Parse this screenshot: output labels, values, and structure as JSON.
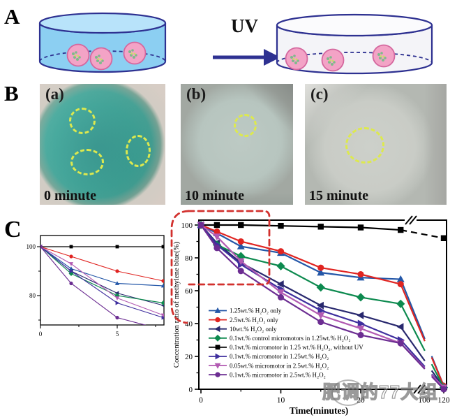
{
  "panelA": {
    "label": "A",
    "arrow_label": "UV",
    "description_colors": {
      "dish_outline": "#2e3191",
      "left_dish_fill": "#8ccff2",
      "right_dish_fill": "#f4f4f8",
      "micromotor_sphere": "#f3a3c6"
    }
  },
  "panelB": {
    "label": "B",
    "highlight_circle_color": "#dde94e",
    "photos": [
      {
        "tag": "(a)",
        "time_label": "0 minute"
      },
      {
        "tag": "(b)",
        "time_label": "10 minute"
      },
      {
        "tag": "(c)",
        "time_label": "15 minute"
      }
    ]
  },
  "panelC": {
    "label": "C",
    "watermark": "肥调的77大组",
    "zoom_box_color": "#d2312e"
  },
  "chart_data": [
    {
      "id": "main",
      "type": "line",
      "title": "",
      "xlabel": "Time(minutes)",
      "ylabel": "Concentration ratio of methylene blue(%)",
      "x": [
        0,
        2,
        5,
        10,
        15,
        20,
        25,
        120
      ],
      "x_ticks": [
        0,
        10,
        20,
        100,
        120
      ],
      "x_minor_ticks": [
        5,
        15,
        110
      ],
      "y_ticks": [
        0,
        20,
        40,
        60,
        80,
        100
      ],
      "y_minor_ticks": [
        10,
        30,
        50,
        70,
        90
      ],
      "ylim": [
        0,
        103
      ],
      "grid": false,
      "legend_position": "inside-bottom-left",
      "axis_break": {
        "x_between": [
          25,
          100
        ],
        "style": "double-slash"
      },
      "series": [
        {
          "name": "1.25wt.% H₂O₂ only",
          "marker": "triangle-up",
          "color": "#2457a8",
          "values": [
            100,
            95,
            87,
            83,
            71,
            68,
            67,
            2
          ]
        },
        {
          "name": "2.5wt.% H₂O₂ only",
          "marker": "circle",
          "color": "#e02421",
          "values": [
            100,
            96,
            90,
            84,
            74,
            70,
            64,
            2
          ]
        },
        {
          "name": "10wt.% H₂O₂ only",
          "marker": "triangle-left",
          "color": "#28286e",
          "values": [
            100,
            89,
            77,
            64,
            51,
            45,
            38,
            1
          ]
        },
        {
          "name": "0.1wt.% control micromotors in 1.25wt.% H₂O₂",
          "marker": "diamond",
          "color": "#0d8a4f",
          "values": [
            100,
            88,
            81,
            75,
            62,
            56,
            52,
            1
          ]
        },
        {
          "name": "0.1wt.% micromotor in 1.25 wt.% H₂O₂, without UV",
          "marker": "square",
          "color": "#000000",
          "values": [
            100,
            100,
            100,
            99.5,
            99,
            98.5,
            97,
            92
          ]
        },
        {
          "name": "0.1wt.% micromotor in 1.25wt.% H₂O₂",
          "marker": "triangle-right",
          "color": "#3f2f9e",
          "values": [
            100,
            88,
            76,
            61,
            48,
            40,
            30,
            1
          ]
        },
        {
          "name": "0.05wt.% micromotor in 2.5wt.% H₂O₂",
          "marker": "triangle-down",
          "color": "#b25ab2",
          "values": [
            100,
            93,
            78,
            59,
            45,
            37,
            28,
            1
          ]
        },
        {
          "name": "0.1wt.% micromotor in 2.5wt.% H₂O₂",
          "marker": "circle",
          "color": "#6c2d92",
          "values": [
            100,
            86,
            72,
            56,
            41,
            33,
            28,
            0
          ]
        }
      ]
    },
    {
      "id": "inset",
      "type": "line",
      "title": "",
      "xlabel": "",
      "ylabel": "",
      "x": [
        0,
        2,
        5,
        8
      ],
      "x_ticks": [
        0,
        5
      ],
      "x_minor_ticks": [
        2.5,
        7.5
      ],
      "y_ticks": [
        80,
        100
      ],
      "y_minor_ticks": [
        70,
        90
      ],
      "ylim": [
        68,
        104.5
      ],
      "grid": false,
      "legend_position": "none",
      "series": [
        {
          "name": "1.25wt.% H₂O₂ only",
          "marker": "triangle-up",
          "color": "#2457a8",
          "values": [
            100,
            91,
            85,
            84
          ]
        },
        {
          "name": "2.5wt.% H₂O₂ only",
          "marker": "circle",
          "color": "#e02421",
          "values": [
            100,
            96,
            90,
            86
          ]
        },
        {
          "name": "10wt.% H₂O₂ only",
          "marker": "triangle-left",
          "color": "#28286e",
          "values": [
            100,
            90,
            81,
            76
          ]
        },
        {
          "name": "0.1wt.% control micromotors in 1.25wt.% H₂O₂",
          "marker": "diamond",
          "color": "#0d8a4f",
          "values": [
            100,
            89,
            80,
            77
          ]
        },
        {
          "name": "0.1wt.% micromotor in 1.25 wt.% H₂O₂, without UV",
          "marker": "square",
          "color": "#000000",
          "values": [
            100,
            100,
            100,
            100
          ]
        },
        {
          "name": "0.1wt.% micromotor in 1.25wt.% H₂O₂",
          "marker": "triangle-right",
          "color": "#3f2f9e",
          "values": [
            100,
            90,
            77,
            71
          ]
        },
        {
          "name": "0.05wt.% micromotor in 2.5wt.% H₂O₂",
          "marker": "triangle-down",
          "color": "#b25ab2",
          "values": [
            100,
            93,
            79,
            72
          ]
        },
        {
          "name": "0.1wt.% micromotor in 2.5wt.% H₂O₂",
          "marker": "circle",
          "color": "#6c2d92",
          "values": [
            100,
            85,
            71,
            66
          ]
        }
      ]
    }
  ]
}
